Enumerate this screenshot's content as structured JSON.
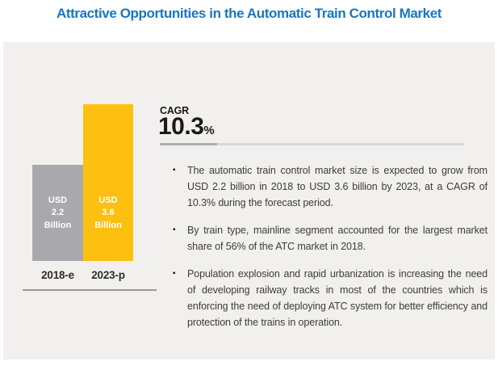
{
  "title": "Attractive Opportunities in the Automatic Train Control Market",
  "chart_data": {
    "type": "bar",
    "categories": [
      "2018-e",
      "2023-p"
    ],
    "values": [
      2.2,
      3.6
    ],
    "value_prefix": "USD",
    "value_suffix": "Billion",
    "bar_colors": [
      "#A9A8AC",
      "#FDC010"
    ],
    "ylim": [
      0,
      3.6
    ],
    "grid": false,
    "legend": "none",
    "title": "Attractive Opportunities in the Automatic Train Control Market",
    "annotation": "CAGR 10.3%"
  },
  "cagr": {
    "label": "CAGR",
    "value": "10.3",
    "percent": "%"
  },
  "bullets": [
    "The automatic train control market size is expected to grow from USD 2.2 billion in 2018 to USD 3.6 billion by 2023, at a CAGR of 10.3% during the forecast period.",
    "By train type, mainline segment accounted for the largest market share of 56% of the ATC market in 2018.",
    "Population explosion and rapid urbanization is increasing the need of developing railway tracks in most of the countries which is enforcing the need of deploying ATC system for better efficiency and protection of the trains in operation."
  ],
  "ui": {
    "bullet_glyph": "▪"
  },
  "colors": {
    "title_blue": "#1C75BC",
    "panel_bg": "#F1F0EF",
    "bar_gray": "#A9A8AC",
    "bar_yellow": "#FDC010",
    "body_text": "#3C3C3C"
  }
}
